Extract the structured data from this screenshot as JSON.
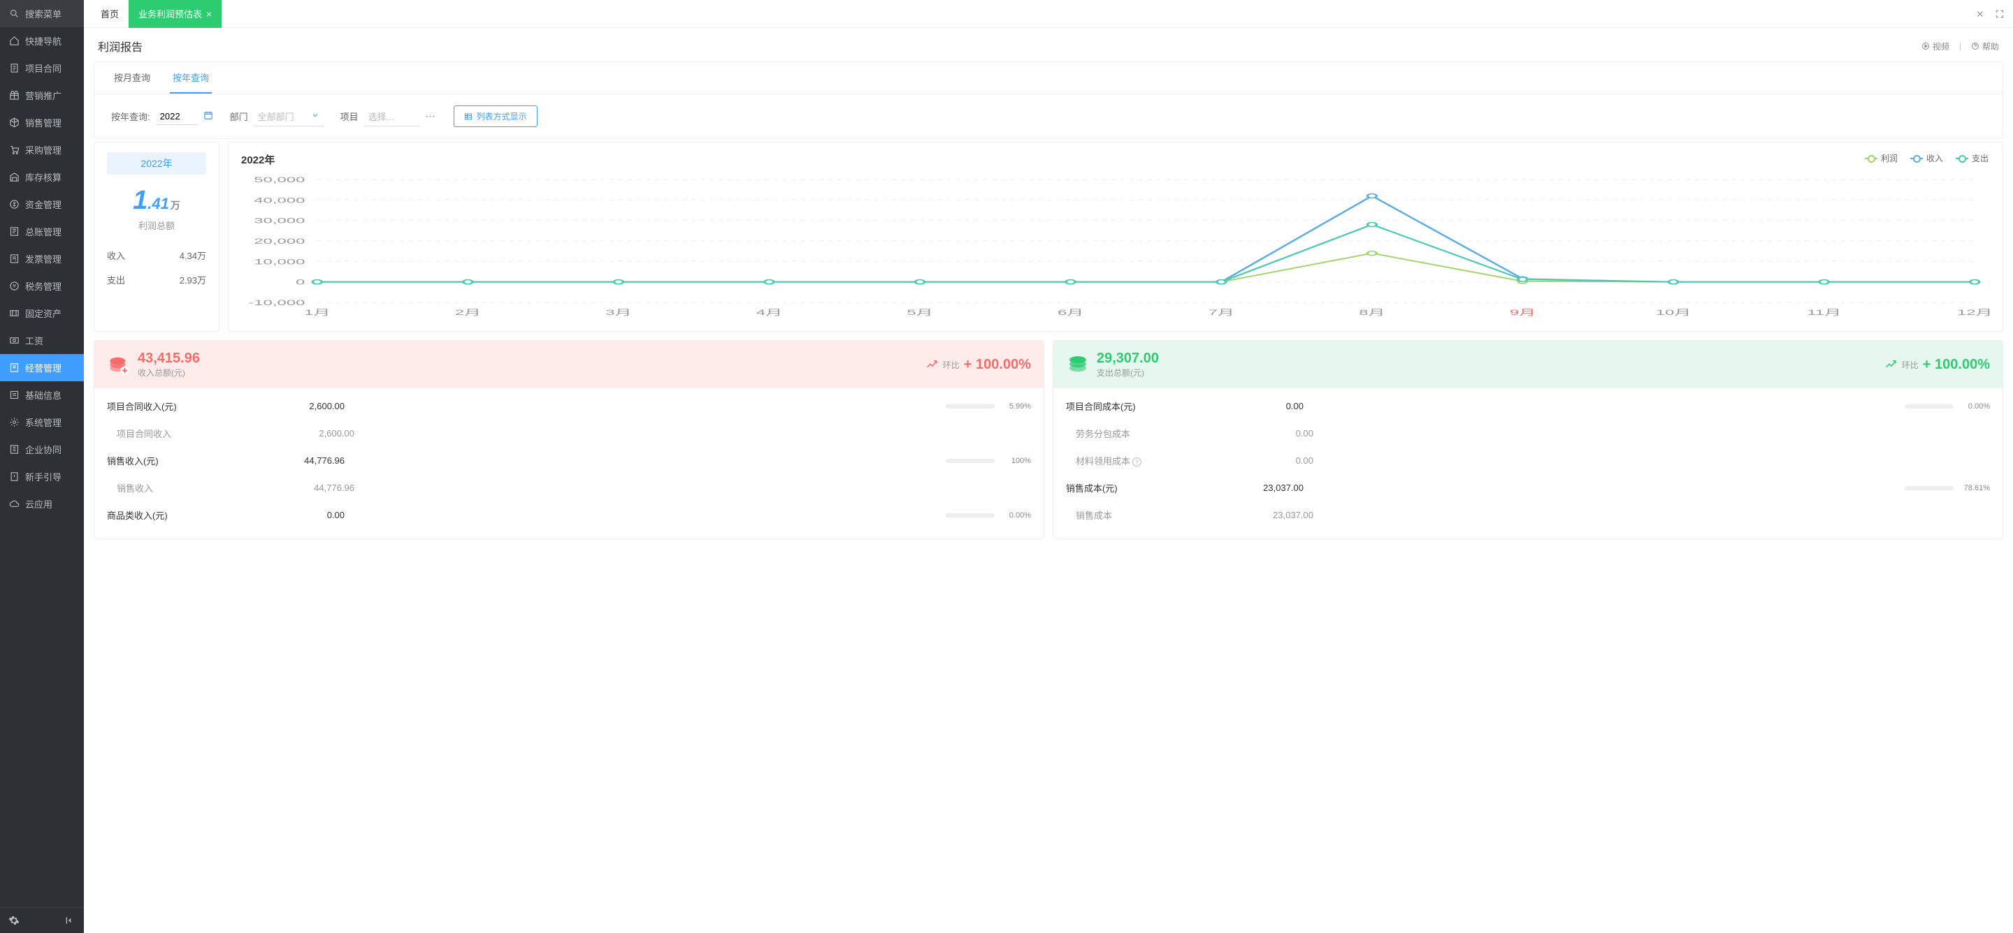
{
  "sidebar": {
    "items": [
      {
        "icon": "search",
        "label": "搜索菜单"
      },
      {
        "icon": "home",
        "label": "快捷导航"
      },
      {
        "icon": "doc",
        "label": "项目合同"
      },
      {
        "icon": "gift",
        "label": "营销推广"
      },
      {
        "icon": "cube",
        "label": "销售管理"
      },
      {
        "icon": "cart",
        "label": "采购管理"
      },
      {
        "icon": "warehouse",
        "label": "库存核算"
      },
      {
        "icon": "money",
        "label": "资金管理"
      },
      {
        "icon": "ledger",
        "label": "总账管理"
      },
      {
        "icon": "invoice",
        "label": "发票管理"
      },
      {
        "icon": "tax",
        "label": "税务管理"
      },
      {
        "icon": "asset",
        "label": "固定资产"
      },
      {
        "icon": "salary",
        "label": "工资"
      },
      {
        "icon": "manage",
        "label": "经营管理",
        "active": true
      },
      {
        "icon": "info",
        "label": "基础信息"
      },
      {
        "icon": "system",
        "label": "系统管理"
      },
      {
        "icon": "enterprise",
        "label": "企业协同"
      },
      {
        "icon": "guide",
        "label": "新手引导"
      },
      {
        "icon": "cloud",
        "label": "云应用"
      }
    ]
  },
  "tabs": [
    {
      "label": "首页",
      "closable": false
    },
    {
      "label": "业务利润预估表",
      "closable": true,
      "active": true
    }
  ],
  "page": {
    "title": "利润报告",
    "actions": {
      "video": "视频",
      "help": "帮助"
    }
  },
  "subTabs": [
    {
      "label": "按月查询"
    },
    {
      "label": "按年查询",
      "active": true
    }
  ],
  "filters": {
    "yearLabel": "按年查询:",
    "year": "2022",
    "deptLabel": "部门",
    "deptPlaceholder": "全部部门",
    "projectLabel": "项目",
    "projectPlaceholder": "选择...",
    "listButton": "列表方式显示"
  },
  "summary": {
    "yearBadge": "2022年",
    "bigInt": "1",
    "bigFrac": ".41",
    "bigUnit": "万",
    "bigLabel": "利润总额",
    "rows": [
      {
        "label": "收入",
        "value": "4.34万"
      },
      {
        "label": "支出",
        "value": "2.93万"
      }
    ]
  },
  "chart": {
    "title": "2022年",
    "type": "line",
    "legend": [
      {
        "name": "利润",
        "color": "#a0d468"
      },
      {
        "name": "收入",
        "color": "#5dade2"
      },
      {
        "name": "支出",
        "color": "#48c9b0"
      }
    ],
    "xLabels": [
      "1月",
      "2月",
      "3月",
      "4月",
      "5月",
      "6月",
      "7月",
      "8月",
      "9月",
      "10月",
      "11月",
      "12月"
    ],
    "xHighlight": "9月",
    "yTicks": [
      -10000,
      0,
      10000,
      20000,
      30000,
      40000,
      50000
    ],
    "yTickLabels": [
      "-10,000",
      "0",
      "10,000",
      "20,000",
      "30,000",
      "40,000",
      "50,000"
    ],
    "ylim": [
      -10000,
      50000
    ],
    "series": {
      "profit": [
        0,
        0,
        0,
        0,
        0,
        0,
        0,
        14000,
        300,
        0,
        0,
        0
      ],
      "income": [
        0,
        0,
        0,
        0,
        0,
        0,
        0,
        42000,
        1500,
        0,
        0,
        0
      ],
      "expense": [
        0,
        0,
        0,
        0,
        0,
        0,
        0,
        28000,
        1200,
        0,
        0,
        0
      ]
    },
    "gridColor": "#eee",
    "axisColor": "#ccc",
    "labelColor": "#999",
    "highlightColor": "#f56c6c",
    "background": "#ffffff",
    "fontSize": 11
  },
  "details": [
    {
      "kind": "income",
      "amount": "43,415.96",
      "sublabel": "收入总额(元)",
      "changeLabel": "环比",
      "changePct": "+ 100.00%",
      "iconColor": "#f56c6c",
      "barColor": "#1abc9c",
      "rows": [
        {
          "label": "项目合同收入(元)",
          "value": "2,600.00",
          "pct": 5.99,
          "pctText": "5.99%"
        },
        {
          "label": "项目合同收入",
          "value": "2,600.00",
          "sub": true
        },
        {
          "label": "销售收入(元)",
          "value": "44,776.96",
          "pct": 100,
          "pctText": "100%"
        },
        {
          "label": "销售收入",
          "value": "44,776.96",
          "sub": true
        },
        {
          "label": "商品类收入(元)",
          "value": "0.00",
          "pct": 0,
          "pctText": "0.00%"
        }
      ]
    },
    {
      "kind": "expense",
      "amount": "29,307.00",
      "sublabel": "支出总额(元)",
      "changeLabel": "环比",
      "changePct": "+ 100.00%",
      "iconColor": "#2ecc71",
      "barColor": "#1abc9c",
      "rows": [
        {
          "label": "项目合同成本(元)",
          "value": "0.00",
          "pct": 0,
          "pctText": "0.00%"
        },
        {
          "label": "劳务分包成本",
          "value": "0.00",
          "sub": true
        },
        {
          "label": "材料领用成本",
          "value": "0.00",
          "sub": true,
          "info": true
        },
        {
          "label": "销售成本(元)",
          "value": "23,037.00",
          "pct": 78.61,
          "pctText": "78.61%"
        },
        {
          "label": "销售成本",
          "value": "23,037.00",
          "sub": true
        }
      ]
    }
  ]
}
